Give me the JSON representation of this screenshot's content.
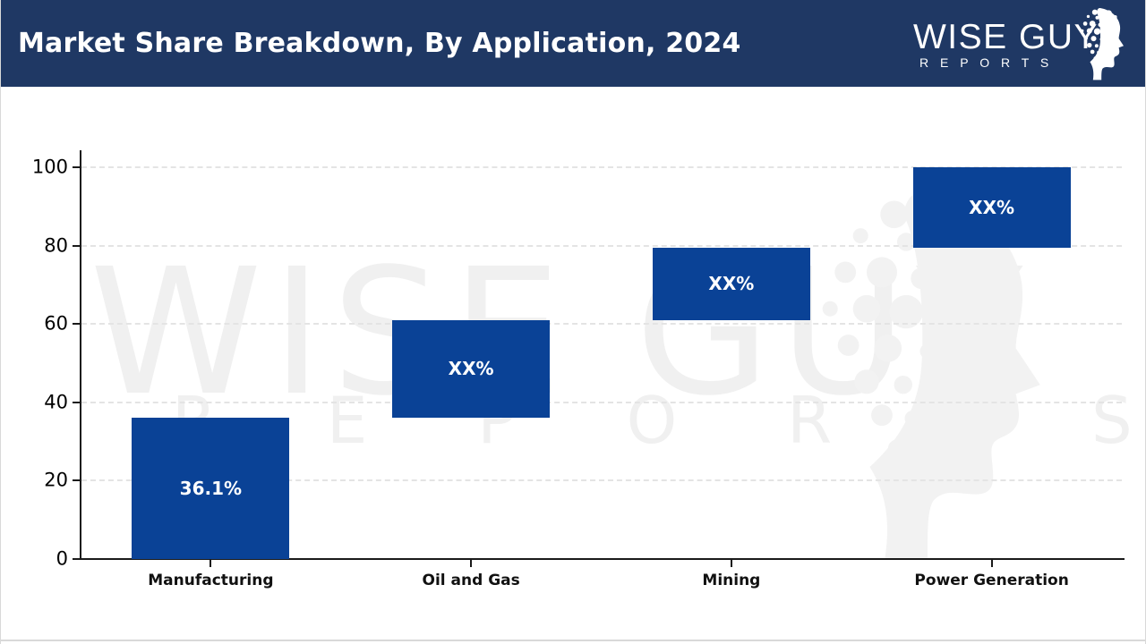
{
  "header": {
    "title": "Market Share Breakdown, By Application, 2024",
    "logo": {
      "line1": "WISE GUY",
      "line2": "R E P O R T S"
    }
  },
  "watermark": {
    "line1": "WISE GUY",
    "line2": "R E P O R T S"
  },
  "colors": {
    "header_bg": "#1f3864",
    "bar": "#0a4296",
    "grid": "#e4e4e4",
    "axis": "#1a1a1a",
    "watermark": "#f0f0f0",
    "page_border": "#d9d9d9",
    "bar_label": "#ffffff"
  },
  "chart_data": {
    "type": "bar",
    "subtype": "floating-waterfall-bars",
    "title": "Market Share Breakdown, By Application, 2024",
    "categories": [
      "Manufacturing",
      "Oil and Gas",
      "Mining",
      "Power Generation"
    ],
    "segments": [
      {
        "category": "Manufacturing",
        "start": 0,
        "end": 36.1,
        "label": "36.1%"
      },
      {
        "category": "Oil and Gas",
        "start": 36.1,
        "end": 61.0,
        "label": "XX%"
      },
      {
        "category": "Mining",
        "start": 61.0,
        "end": 79.5,
        "label": "XX%"
      },
      {
        "category": "Power Generation",
        "start": 79.5,
        "end": 100.0,
        "label": "XX%"
      }
    ],
    "ylim": [
      0,
      100
    ],
    "yticks": [
      0,
      20,
      40,
      60,
      80,
      100
    ],
    "xlabel": "",
    "ylabel": "",
    "grid": "horizontal-dashed",
    "legend": "none"
  }
}
